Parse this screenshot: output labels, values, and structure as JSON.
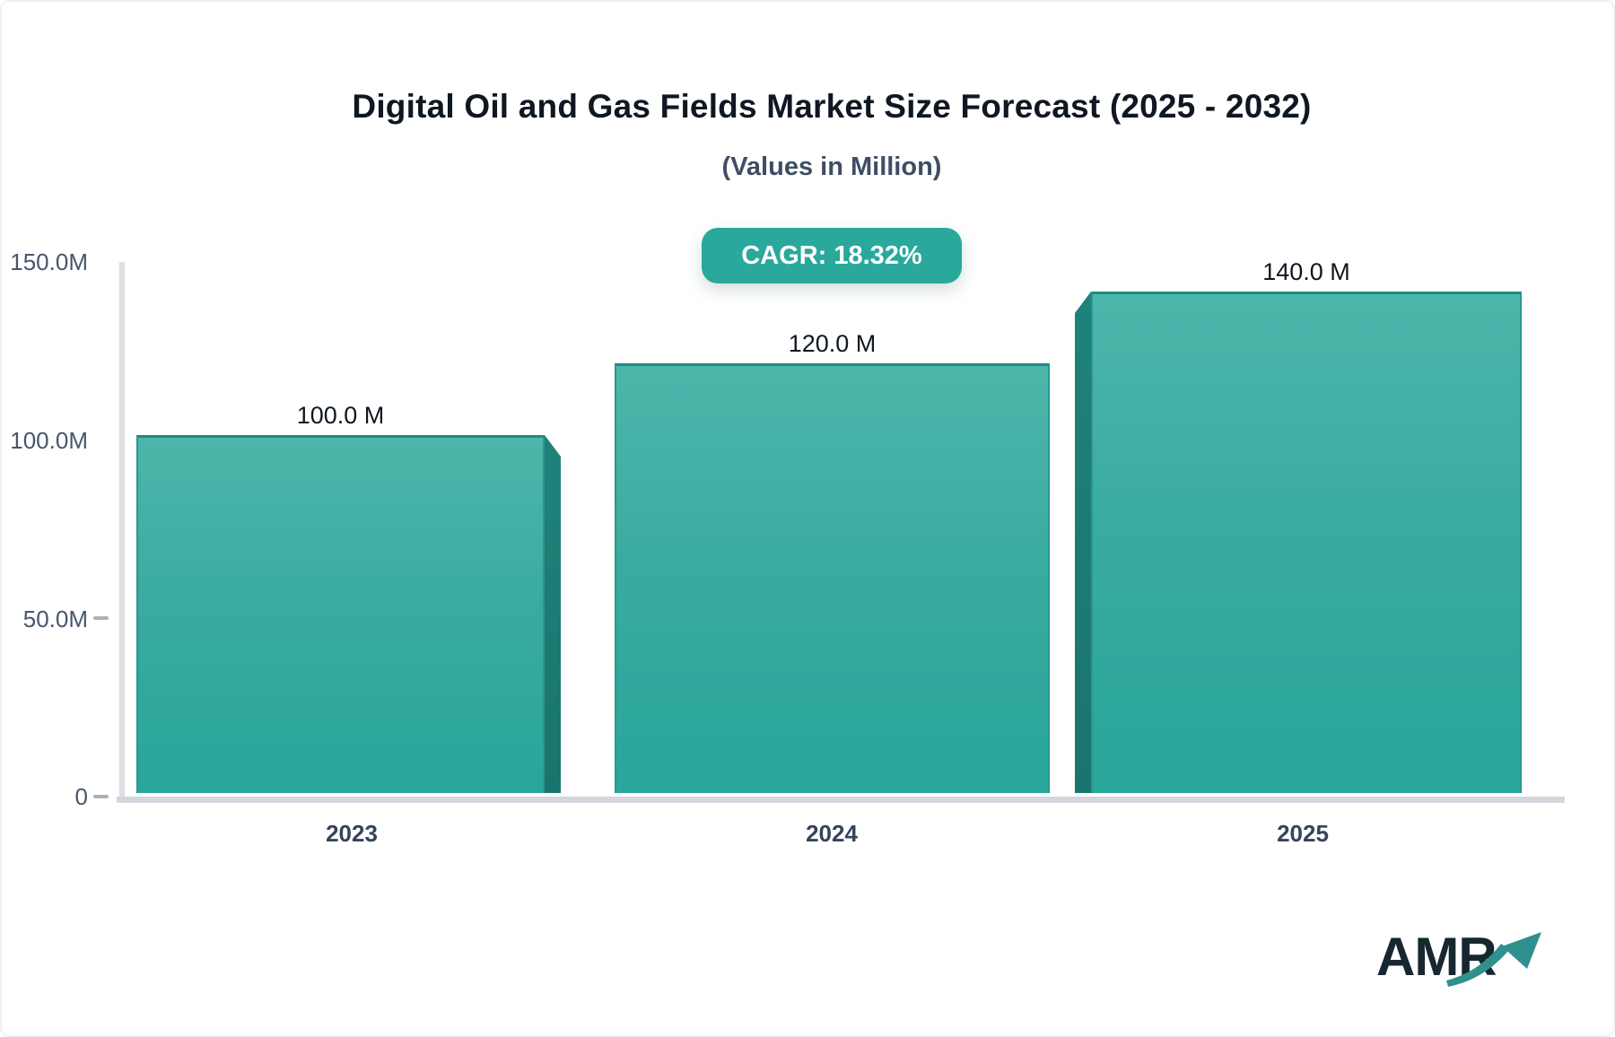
{
  "header": {
    "title": "Digital Oil and Gas Fields Market Size Forecast (2025 - 2032)",
    "subtitle": "(Values in Million)",
    "cagr_badge": "CAGR: 18.32%"
  },
  "chart_data": {
    "type": "bar",
    "title": "Digital Oil and Gas Fields Market Size Forecast (2025 - 2032)",
    "subtitle": "(Values in Million)",
    "unit": "Million",
    "cagr_percent": 18.32,
    "categories": [
      "2023",
      "2024",
      "2025"
    ],
    "values": [
      100.0,
      120.0,
      140.0
    ],
    "bars": [
      {
        "category": "2023",
        "value": 100.0,
        "label": "100.0 M"
      },
      {
        "category": "2024",
        "value": 120.0,
        "label": "120.0 M"
      },
      {
        "category": "2025",
        "value": 140.0,
        "label": "140.0 M"
      }
    ],
    "y_axis": {
      "ticks": [
        "150.0M",
        "100.0M",
        "50.0M",
        "0"
      ],
      "range": [
        0,
        150
      ],
      "grid": "off"
    },
    "legend": "none",
    "layout": {
      "bar_style": "3d-beveled",
      "value_labels": "above-bars"
    }
  },
  "colors": {
    "bar_gradient_top": "#4eb6ab",
    "bar_gradient_bottom": "#29a69a",
    "bar_side_shade": "#1f837b",
    "bar_border": "#1e8b81",
    "badge_background": "#2aa89c",
    "badge_text": "#ffffff",
    "title_text": "#0f1722",
    "axis_label_text": "#47566c",
    "axis_line": "#d2d7de",
    "logo_text": "#172730",
    "logo_arrow": "#2f918d"
  },
  "logo": {
    "text": "AMR"
  }
}
